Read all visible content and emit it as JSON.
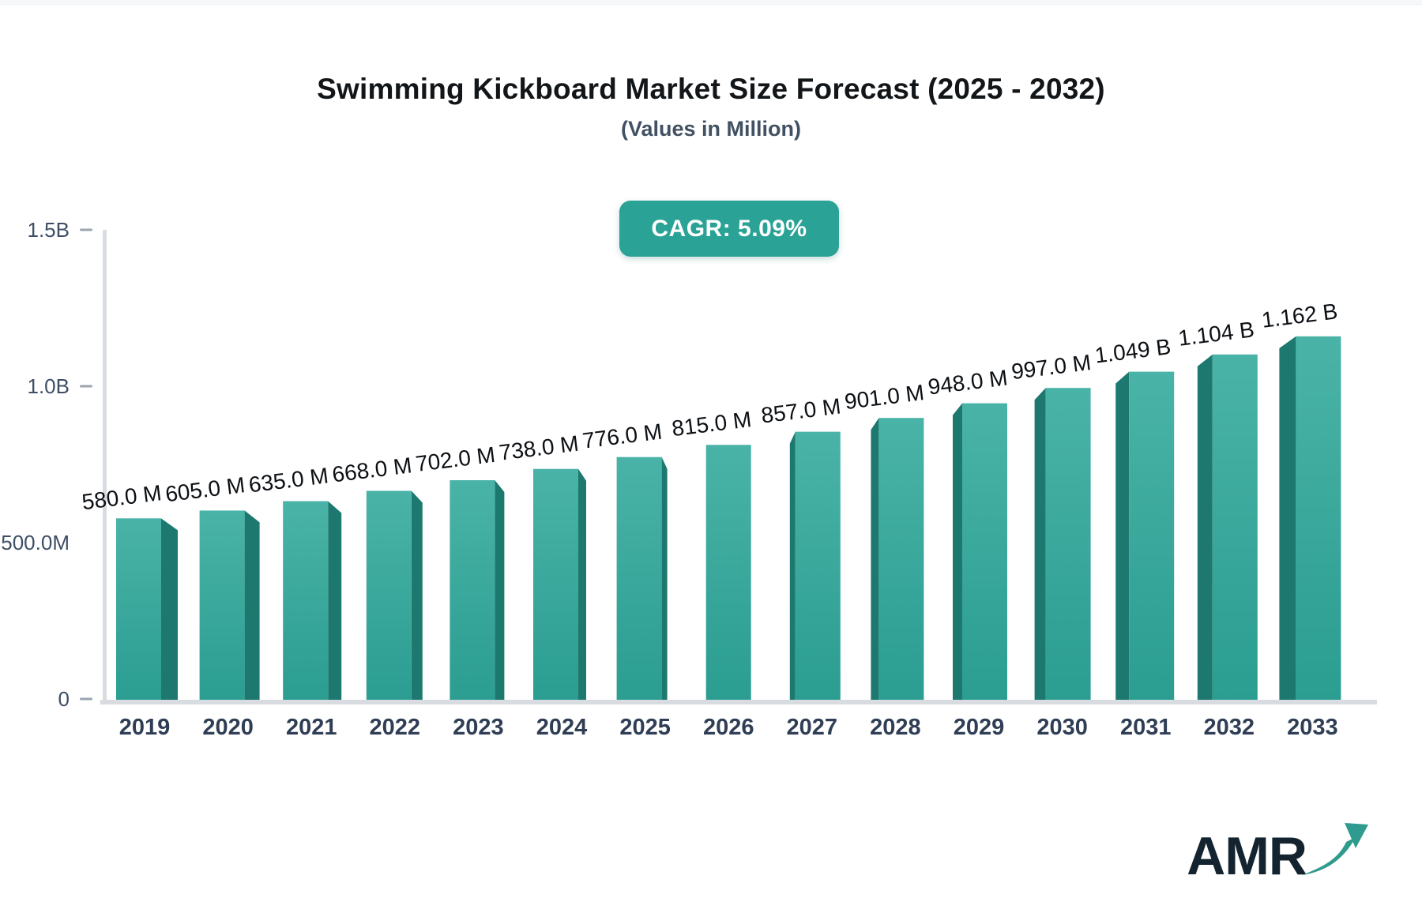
{
  "header": {
    "title": "Swimming Kickboard Market Size Forecast (2025 - 2032)",
    "subtitle": "(Values in Million)",
    "cagr_badge": "CAGR: 5.09%"
  },
  "branding": {
    "logo_text": "AMR",
    "logo_arrow_icon": "growth-arrow-icon"
  },
  "colors": {
    "accent_teal": "#2aa296",
    "bar_front_top": "#4ab3a7",
    "bar_front_bottom": "#2b9d91",
    "bar_side": "#1d796f",
    "axis_line": "#d8dbe0",
    "tick_dash": "#9aa5b0",
    "y_tick_text": "#3e4e66",
    "x_tick_text": "#2f3e55",
    "value_label_text": "#0c1014",
    "title_text": "#121619",
    "subtitle_text": "#415062",
    "badge_text": "#ffffff",
    "logo_text": "#132430"
  },
  "chart_data": {
    "type": "bar",
    "title": "Swimming Kickboard Market Size Forecast (2025 - 2032)",
    "subtitle": "(Values in Million)",
    "cagr_annotation": "CAGR: 5.09%",
    "categories": [
      "2019",
      "2020",
      "2021",
      "2022",
      "2023",
      "2024",
      "2025",
      "2026",
      "2027",
      "2028",
      "2029",
      "2030",
      "2031",
      "2032",
      "2033"
    ],
    "values_millions": [
      580,
      605,
      635,
      668,
      702,
      738,
      776,
      815,
      857,
      901,
      948,
      997,
      1049,
      1104,
      1162
    ],
    "value_labels": [
      "580.0 M",
      "605.0 M",
      "635.0 M",
      "668.0 M",
      "702.0 M",
      "738.0 M",
      "776.0 M",
      "815.0 M",
      "857.0 M",
      "901.0 M",
      "948.0 M",
      "997.0 M",
      "1.049 B",
      "1.104 B",
      "1.162 B"
    ],
    "yticks": [
      {
        "label": "1.5B",
        "value_millions": 1500,
        "dash": true
      },
      {
        "label": "1.0B",
        "value_millions": 1000,
        "dash": true
      },
      {
        "label": "500.0M",
        "value_millions": 500,
        "dash": false
      },
      {
        "label": "0",
        "value_millions": 0,
        "dash": true
      }
    ],
    "ylim_millions": [
      0,
      1500
    ],
    "xlabel": "",
    "ylabel": "",
    "grid": false,
    "legend": false,
    "bar_style": "3d-extruded-perspective"
  }
}
